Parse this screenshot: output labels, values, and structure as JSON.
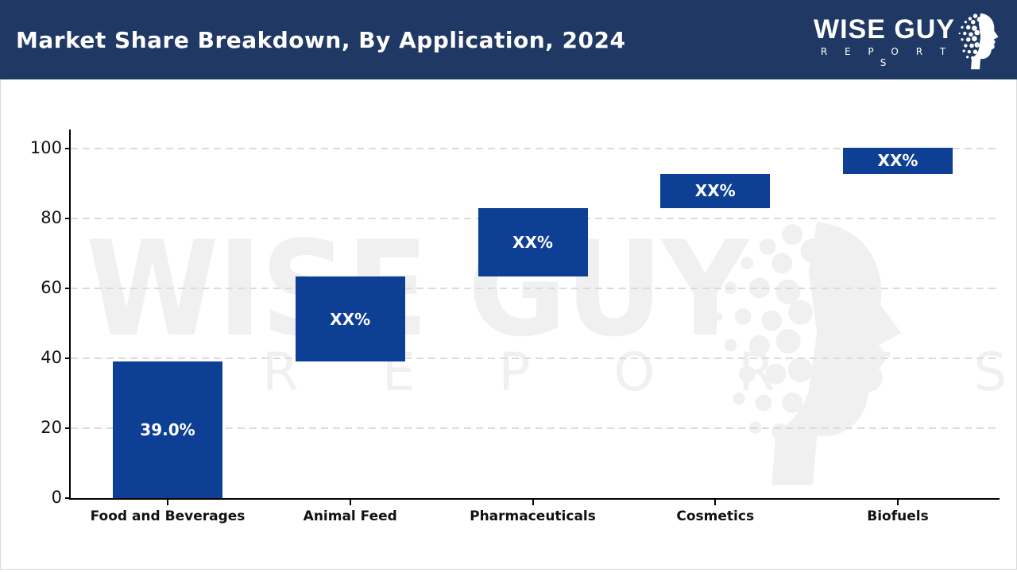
{
  "header": {
    "title": "Market Share Breakdown, By Application, 2024",
    "logo": {
      "line1": "WISE GUY",
      "line2": "R E P O R T S",
      "face_icon": "dotted-face-profile"
    }
  },
  "watermark": {
    "line1": "WISE GUY",
    "line2": "R E P O R T S",
    "face_icon": "dotted-face-profile"
  },
  "colors": {
    "header_bg": "#1f3864",
    "bar_blue": "#0d3f94",
    "bar_label_white": "#ffffff",
    "grid_gray": "#dbdbdb",
    "watermark_gray": "#f0f0f0",
    "card_border": "#d9d9d9",
    "axis_black": "#000000"
  },
  "chart_data": {
    "type": "bar",
    "subtype": "waterfall",
    "title": "Market Share Breakdown, By Application, 2024",
    "categories": [
      "Food and Beverages",
      "Animal Feed",
      "Pharmaceuticals",
      "Cosmetics",
      "Biofuels"
    ],
    "segments": [
      {
        "category": "Food and Beverages",
        "start": 0,
        "end": 39,
        "label": "39.0%"
      },
      {
        "category": "Animal Feed",
        "start": 39,
        "end": 63.4,
        "label": "XX%"
      },
      {
        "category": "Pharmaceuticals",
        "start": 63.4,
        "end": 83,
        "label": "XX%"
      },
      {
        "category": "Cosmetics",
        "start": 83,
        "end": 92.7,
        "label": "XX%"
      },
      {
        "category": "Biofuels",
        "start": 92.7,
        "end": 100.3,
        "label": "XX%"
      }
    ],
    "xlabel": "",
    "ylabel": "",
    "ylim": [
      0,
      105
    ],
    "yticks": [
      0,
      20,
      40,
      60,
      80,
      100
    ],
    "grid": "horizontal-dashed",
    "legend": null,
    "bar_color": "#0d3f94"
  }
}
